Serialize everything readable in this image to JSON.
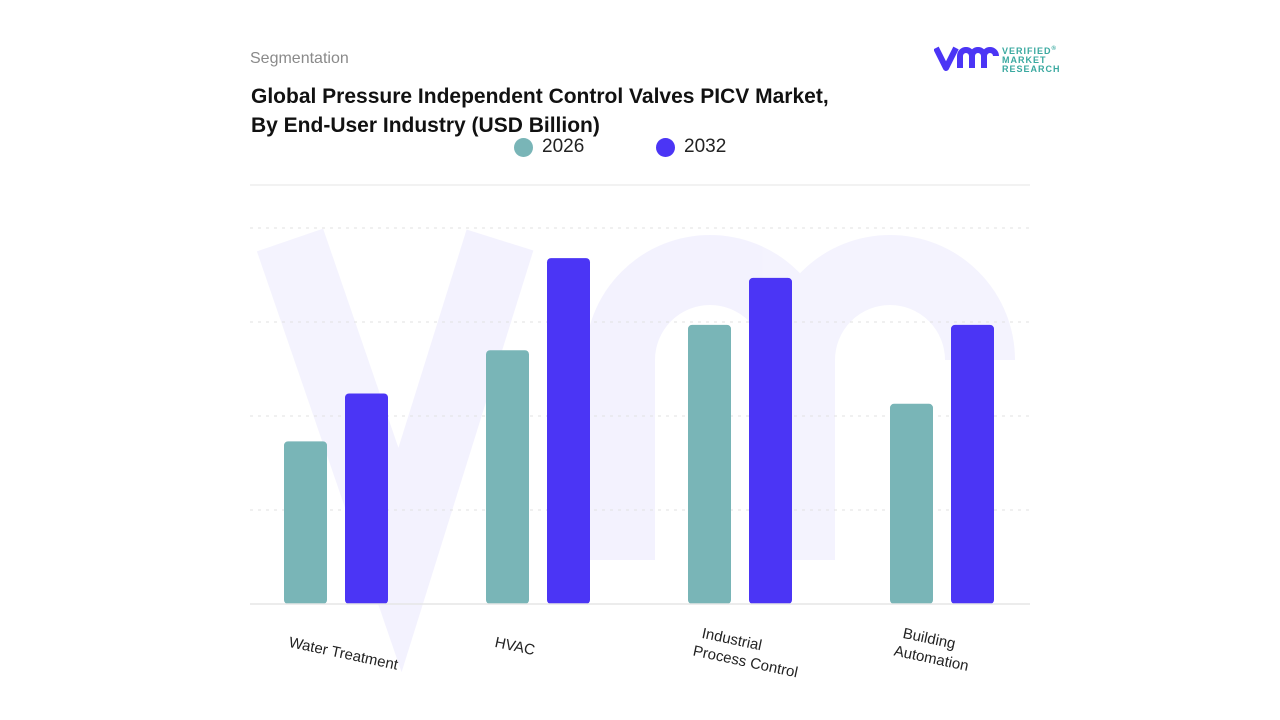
{
  "header": {
    "section": "Segmentation",
    "title_line1": "Global Pressure Independent Control Valves PICV Market,",
    "title_line2": "By End-User Industry (USD Billion)"
  },
  "logo": {
    "text": "VERIFIED MARKET RESEARCH",
    "mark": "vmr"
  },
  "colors": {
    "2026": "#79b5b7",
    "2032": "#4b35f5"
  },
  "chart_data": {
    "type": "bar",
    "title": "Global Pressure Independent Control Valves PICV Market, By End-User Industry (USD Billion)",
    "categories": [
      "Water Treatment",
      "HVAC",
      "Industrial Process Control",
      "Building Automation"
    ],
    "category_labels": [
      [
        "Water Treatment"
      ],
      [
        "HVAC"
      ],
      [
        "Industrial",
        "Process Control"
      ],
      [
        "Building",
        "Automation"
      ]
    ],
    "series": [
      {
        "name": "2026",
        "values": [
          1.73,
          2.7,
          2.97,
          2.13
        ]
      },
      {
        "name": "2032",
        "values": [
          2.24,
          3.68,
          3.47,
          2.97
        ]
      }
    ],
    "ylim": [
      0,
      4
    ],
    "y_ticks_labeled": false,
    "grid": true,
    "legend": "top-center"
  }
}
